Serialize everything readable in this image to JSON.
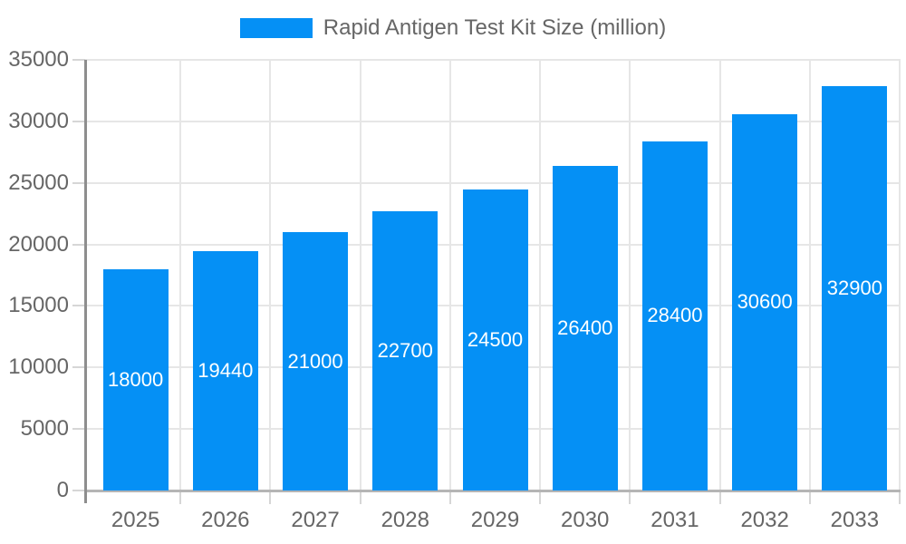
{
  "chart_data": {
    "type": "bar",
    "title": "Rapid Antigen Test Kit Size (million)",
    "legend": {
      "label": "Rapid Antigen Test Kit Size (million)",
      "position": "top"
    },
    "categories": [
      "2025",
      "2026",
      "2027",
      "2028",
      "2029",
      "2030",
      "2031",
      "2032",
      "2033"
    ],
    "series": [
      {
        "name": "Rapid Antigen Test Kit Size (million)",
        "values": [
          18000,
          19440,
          21000,
          22700,
          24500,
          26400,
          28400,
          30600,
          32900
        ]
      }
    ],
    "xlabel": "",
    "ylabel": "",
    "ylim": [
      0,
      35000
    ],
    "yticks": [
      0,
      5000,
      10000,
      15000,
      20000,
      25000,
      30000,
      35000
    ],
    "grid": true,
    "bar_value_labels_visible": true,
    "colors": {
      "bar": "#0590f5",
      "bar_label_text": "#ffffff",
      "axis_text": "#666666",
      "legend_text": "#666666",
      "gridline": "#e6e6e6",
      "tick_mark": "#d6d6d6",
      "zero_line": "#b5b5b5",
      "axis_border": "#8e8e8e",
      "background": "#ffffff"
    }
  }
}
